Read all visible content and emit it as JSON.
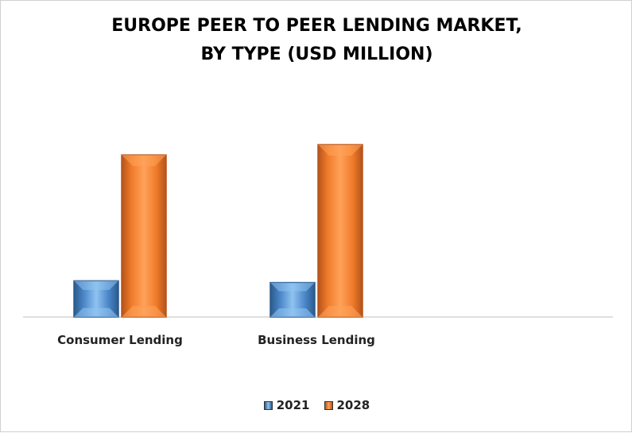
{
  "chart_data": {
    "type": "bar",
    "title_lines": [
      "EUROPE PEER TO PEER LENDING MARKET,",
      "BY TYPE (USD MILLION)"
    ],
    "categories": [
      "Consumer Lending",
      "Business Lending"
    ],
    "series": [
      {
        "name": "2021",
        "values": [
          210,
          200
        ],
        "color": "#4a86c8",
        "light": "#8fc3f0",
        "dark": "#2b5a8c"
      },
      {
        "name": "2028",
        "values": [
          940,
          1000
        ],
        "color": "#f07b2a",
        "light": "#ffa25a",
        "dark": "#b5531a"
      }
    ],
    "ylim": [
      0,
      1060
    ],
    "legend_position": "bottom",
    "grid": false,
    "value_axis_shown": false
  }
}
